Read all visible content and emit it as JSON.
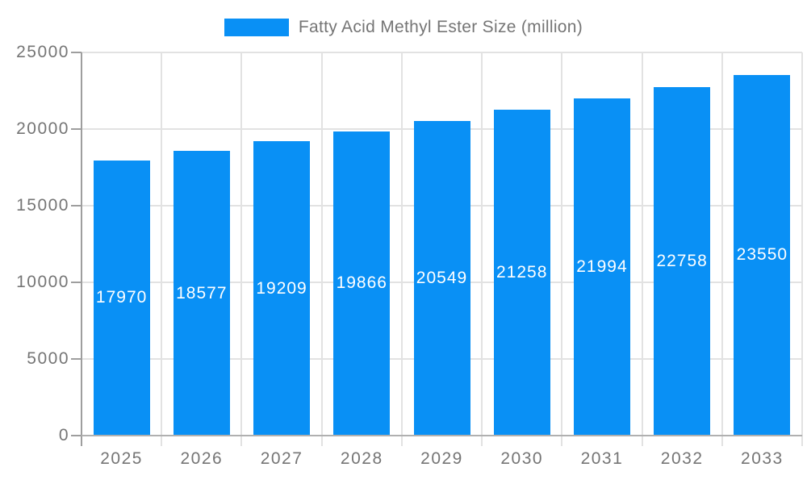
{
  "legend": {
    "label": "Fatty Acid Methyl Ester Size (million)"
  },
  "colors": {
    "bar": "#0990f5",
    "bar_label_text": "#ffffff",
    "axis_text": "#757575",
    "gridline": "#e2e2e2",
    "axis_line": "#9e9e9e",
    "baseline": "#b0b0b0",
    "background": "#ffffff"
  },
  "chart_data": {
    "type": "bar",
    "title": "",
    "legend": "Fatty Acid Methyl Ester Size (million)",
    "legend_position": "top-center",
    "categories": [
      "2025",
      "2026",
      "2027",
      "2028",
      "2029",
      "2030",
      "2031",
      "2032",
      "2033"
    ],
    "values": [
      17970,
      18577,
      19209,
      19866,
      20549,
      21258,
      21994,
      22758,
      23550
    ],
    "value_labels": [
      "17970",
      "18577",
      "19209",
      "19866",
      "20549",
      "21258",
      "21994",
      "22758",
      "23550"
    ],
    "value_label_position": "inside-center",
    "xlabel": "",
    "ylabel": "",
    "ylim": [
      0,
      25000
    ],
    "yticks": [
      0,
      5000,
      10000,
      15000,
      20000,
      25000
    ],
    "ytick_labels": [
      "0",
      "5000",
      "10000",
      "15000",
      "20000",
      "25000"
    ],
    "grid": true
  }
}
